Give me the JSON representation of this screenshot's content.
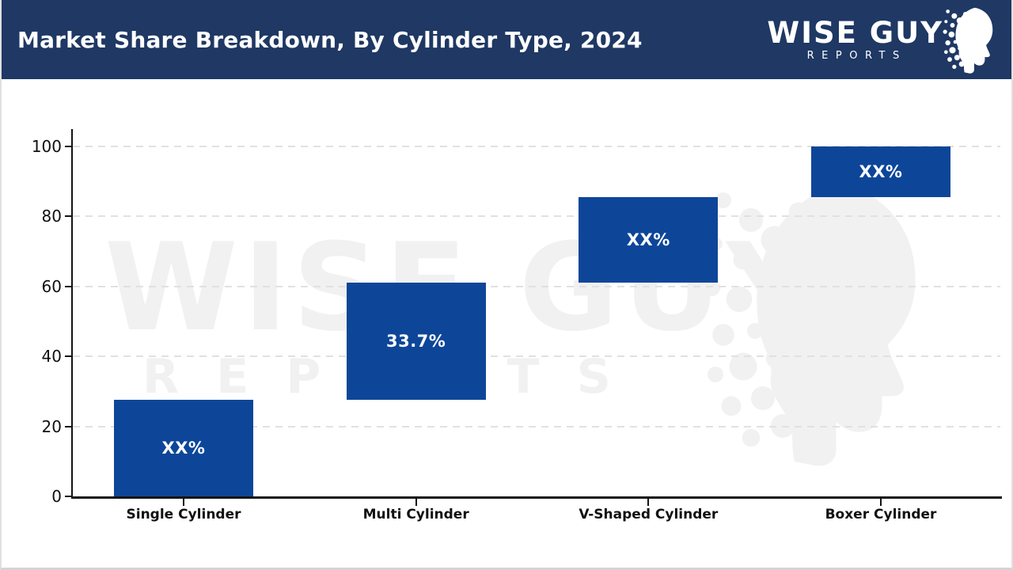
{
  "header": {
    "title": "Market Share Breakdown, By Cylinder Type, 2024",
    "logo": {
      "line1": "WISE GUY",
      "line2": "REPORTS"
    }
  },
  "watermark": {
    "line1": "WISE GUY",
    "line2": "REPORTS"
  },
  "colors": {
    "header_bg": "#1f3864",
    "bar": "#0d4699",
    "bar_label": "#ffffff",
    "axis": "#141414",
    "grid": "#e1e1e1",
    "watermark": "#f1f1f1"
  },
  "chart_data": {
    "type": "bar",
    "variant": "floating segment bars (waterfall-style market share breakdown)",
    "title": "Market Share Breakdown, By Cylinder Type, 2024",
    "categories": [
      "Single Cylinder",
      "Multi Cylinder",
      "V-Shaped Cylinder",
      "Boxer Cylinder"
    ],
    "bars": [
      {
        "category": "Single Cylinder",
        "start": 0,
        "end": 27.5,
        "label": "XX%"
      },
      {
        "category": "Multi Cylinder",
        "start": 27.5,
        "end": 61.2,
        "label": "33.7%",
        "value": 33.7
      },
      {
        "category": "V-Shaped Cylinder",
        "start": 61.2,
        "end": 85.5,
        "label": "XX%"
      },
      {
        "category": "Boxer Cylinder",
        "start": 85.5,
        "end": 100,
        "label": "XX%"
      }
    ],
    "xlabel": "",
    "ylabel": "",
    "yticks": [
      0,
      20,
      40,
      60,
      80,
      100
    ],
    "ylim": [
      0,
      105
    ],
    "grid": {
      "axis": "y",
      "style": "dashed",
      "color": "#e1e1e1"
    },
    "legend": "none"
  }
}
